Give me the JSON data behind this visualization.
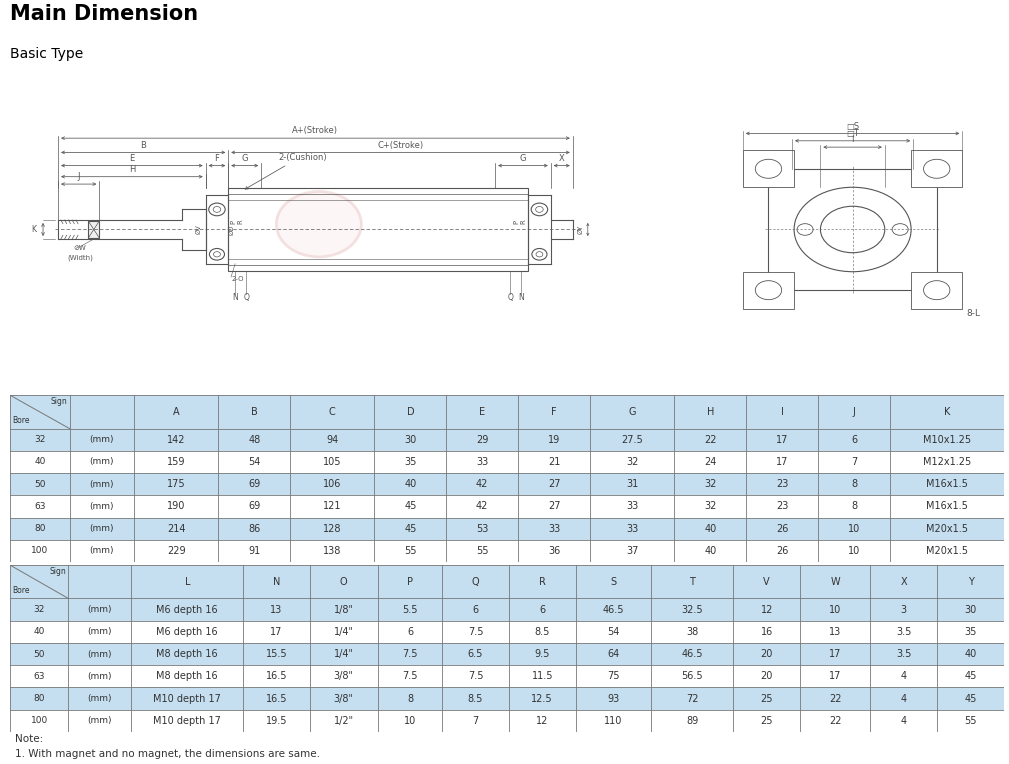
{
  "title": "Main Dimension",
  "subtitle": "Basic Type",
  "note_lines": [
    "Note:",
    "1. With magnet and no magnet, the dimensions are same."
  ],
  "table1_col_header": [
    "Bore",
    "Sign",
    "A",
    "B",
    "C",
    "D",
    "E",
    "F",
    "G",
    "H",
    "I",
    "J",
    "K"
  ],
  "table1_rows": [
    [
      "32",
      "(mm)",
      "142",
      "48",
      "94",
      "30",
      "29",
      "19",
      "27.5",
      "22",
      "17",
      "6",
      "M10x1.25"
    ],
    [
      "40",
      "(mm)",
      "159",
      "54",
      "105",
      "35",
      "33",
      "21",
      "32",
      "24",
      "17",
      "7",
      "M12x1.25"
    ],
    [
      "50",
      "(mm)",
      "175",
      "69",
      "106",
      "40",
      "42",
      "27",
      "31",
      "32",
      "23",
      "8",
      "M16x1.5"
    ],
    [
      "63",
      "(mm)",
      "190",
      "69",
      "121",
      "45",
      "42",
      "27",
      "33",
      "32",
      "23",
      "8",
      "M16x1.5"
    ],
    [
      "80",
      "(mm)",
      "214",
      "86",
      "128",
      "45",
      "53",
      "33",
      "33",
      "40",
      "26",
      "10",
      "M20x1.5"
    ],
    [
      "100",
      "(mm)",
      "229",
      "91",
      "138",
      "55",
      "55",
      "36",
      "37",
      "40",
      "26",
      "10",
      "M20x1.5"
    ]
  ],
  "table2_col_header": [
    "Bore",
    "Sign",
    "L",
    "N",
    "O",
    "P",
    "Q",
    "R",
    "S",
    "T",
    "V",
    "W",
    "X",
    "Y"
  ],
  "table2_rows": [
    [
      "32",
      "(mm)",
      "M6 depth 16",
      "13",
      "1/8\"",
      "5.5",
      "6",
      "6",
      "46.5",
      "32.5",
      "12",
      "10",
      "3",
      "30"
    ],
    [
      "40",
      "(mm)",
      "M6 depth 16",
      "17",
      "1/4\"",
      "6",
      "7.5",
      "8.5",
      "54",
      "38",
      "16",
      "13",
      "3.5",
      "35"
    ],
    [
      "50",
      "(mm)",
      "M8 depth 16",
      "15.5",
      "1/4\"",
      "7.5",
      "6.5",
      "9.5",
      "64",
      "46.5",
      "20",
      "17",
      "3.5",
      "40"
    ],
    [
      "63",
      "(mm)",
      "M8 depth 16",
      "16.5",
      "3/8\"",
      "7.5",
      "7.5",
      "11.5",
      "75",
      "56.5",
      "20",
      "17",
      "4",
      "45"
    ],
    [
      "80",
      "(mm)",
      "M10 depth 17",
      "16.5",
      "3/8\"",
      "8",
      "8.5",
      "12.5",
      "93",
      "72",
      "25",
      "22",
      "4",
      "45"
    ],
    [
      "100",
      "(mm)",
      "M10 depth 17",
      "19.5",
      "1/2\"",
      "10",
      "7",
      "12",
      "110",
      "89",
      "25",
      "22",
      "4",
      "55"
    ]
  ],
  "header_bg": "#c5dff0",
  "border_color": "#777777",
  "text_color": "#333333",
  "title_color": "#000000",
  "dc": "#555555"
}
